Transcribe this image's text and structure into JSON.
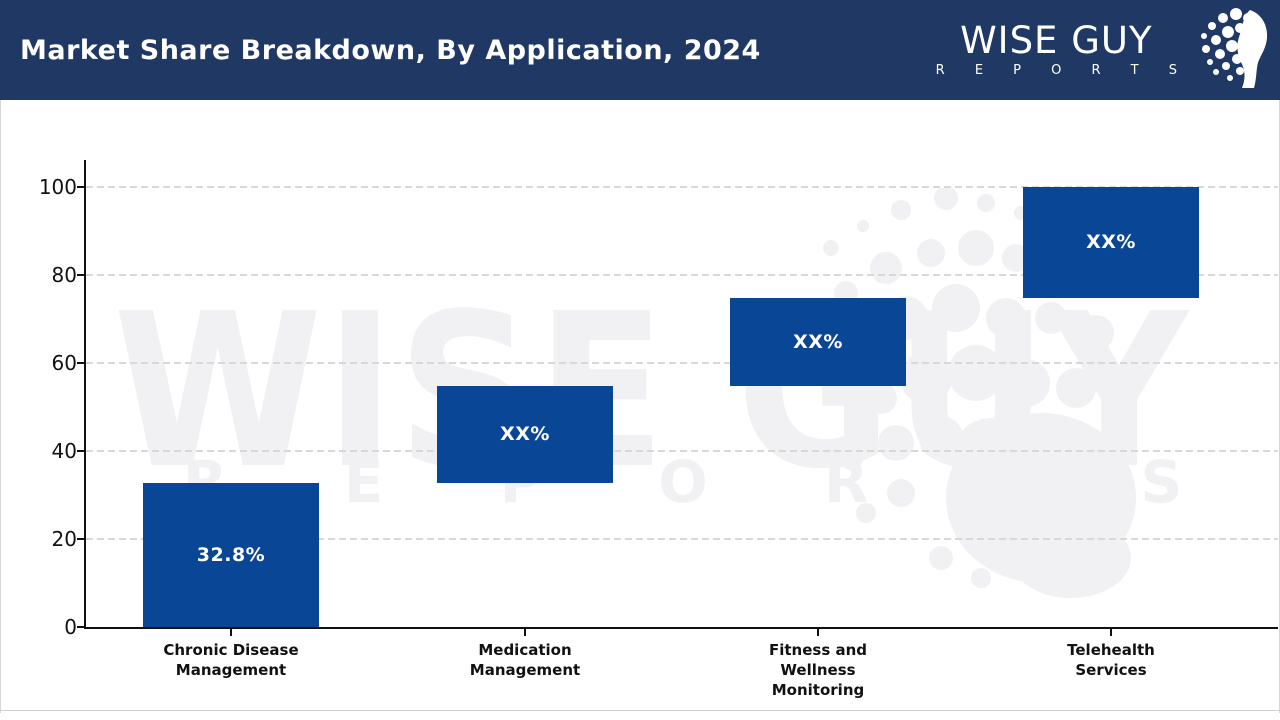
{
  "header": {
    "title": "Market Share Breakdown, By Application, 2024",
    "bg_color": "#1f3864",
    "brand": {
      "line1": "WISE GUY",
      "line2": "R E P O R T S",
      "face_icon": "wiseguy-dotted-face"
    }
  },
  "watermark": {
    "line1": "WISE GUY",
    "line2": "R E P O R T S",
    "head_icon": "dotted-head-profile",
    "color": "#f1f1f4"
  },
  "chart_data": {
    "type": "bar",
    "subtype": "waterfall",
    "title": "Market Share Breakdown, By Application, 2024",
    "categories": [
      "Chronic Disease\nManagement",
      "Medication\nManagement",
      "Fitness and\nWellness\nMonitoring",
      "Telehealth\nServices"
    ],
    "segments": [
      [
        0,
        32.8
      ],
      [
        32.8,
        54.7
      ],
      [
        54.7,
        74.8
      ],
      [
        74.8,
        100
      ]
    ],
    "values": [
      32.8,
      21.9,
      20.1,
      25.2
    ],
    "bar_labels": [
      "32.8%",
      "XX%",
      "XX%",
      "XX%"
    ],
    "xlabel": "",
    "ylabel": "",
    "ylim": [
      0,
      100
    ],
    "yticks": [
      0,
      20,
      40,
      60,
      80,
      100
    ],
    "grid": "horizontal-dashed",
    "legend": "none",
    "bar_color": "#0a4696",
    "bar_label_color": "#ffffff",
    "axis_color": "#111111",
    "gridline_color": "#d8d8d8"
  }
}
